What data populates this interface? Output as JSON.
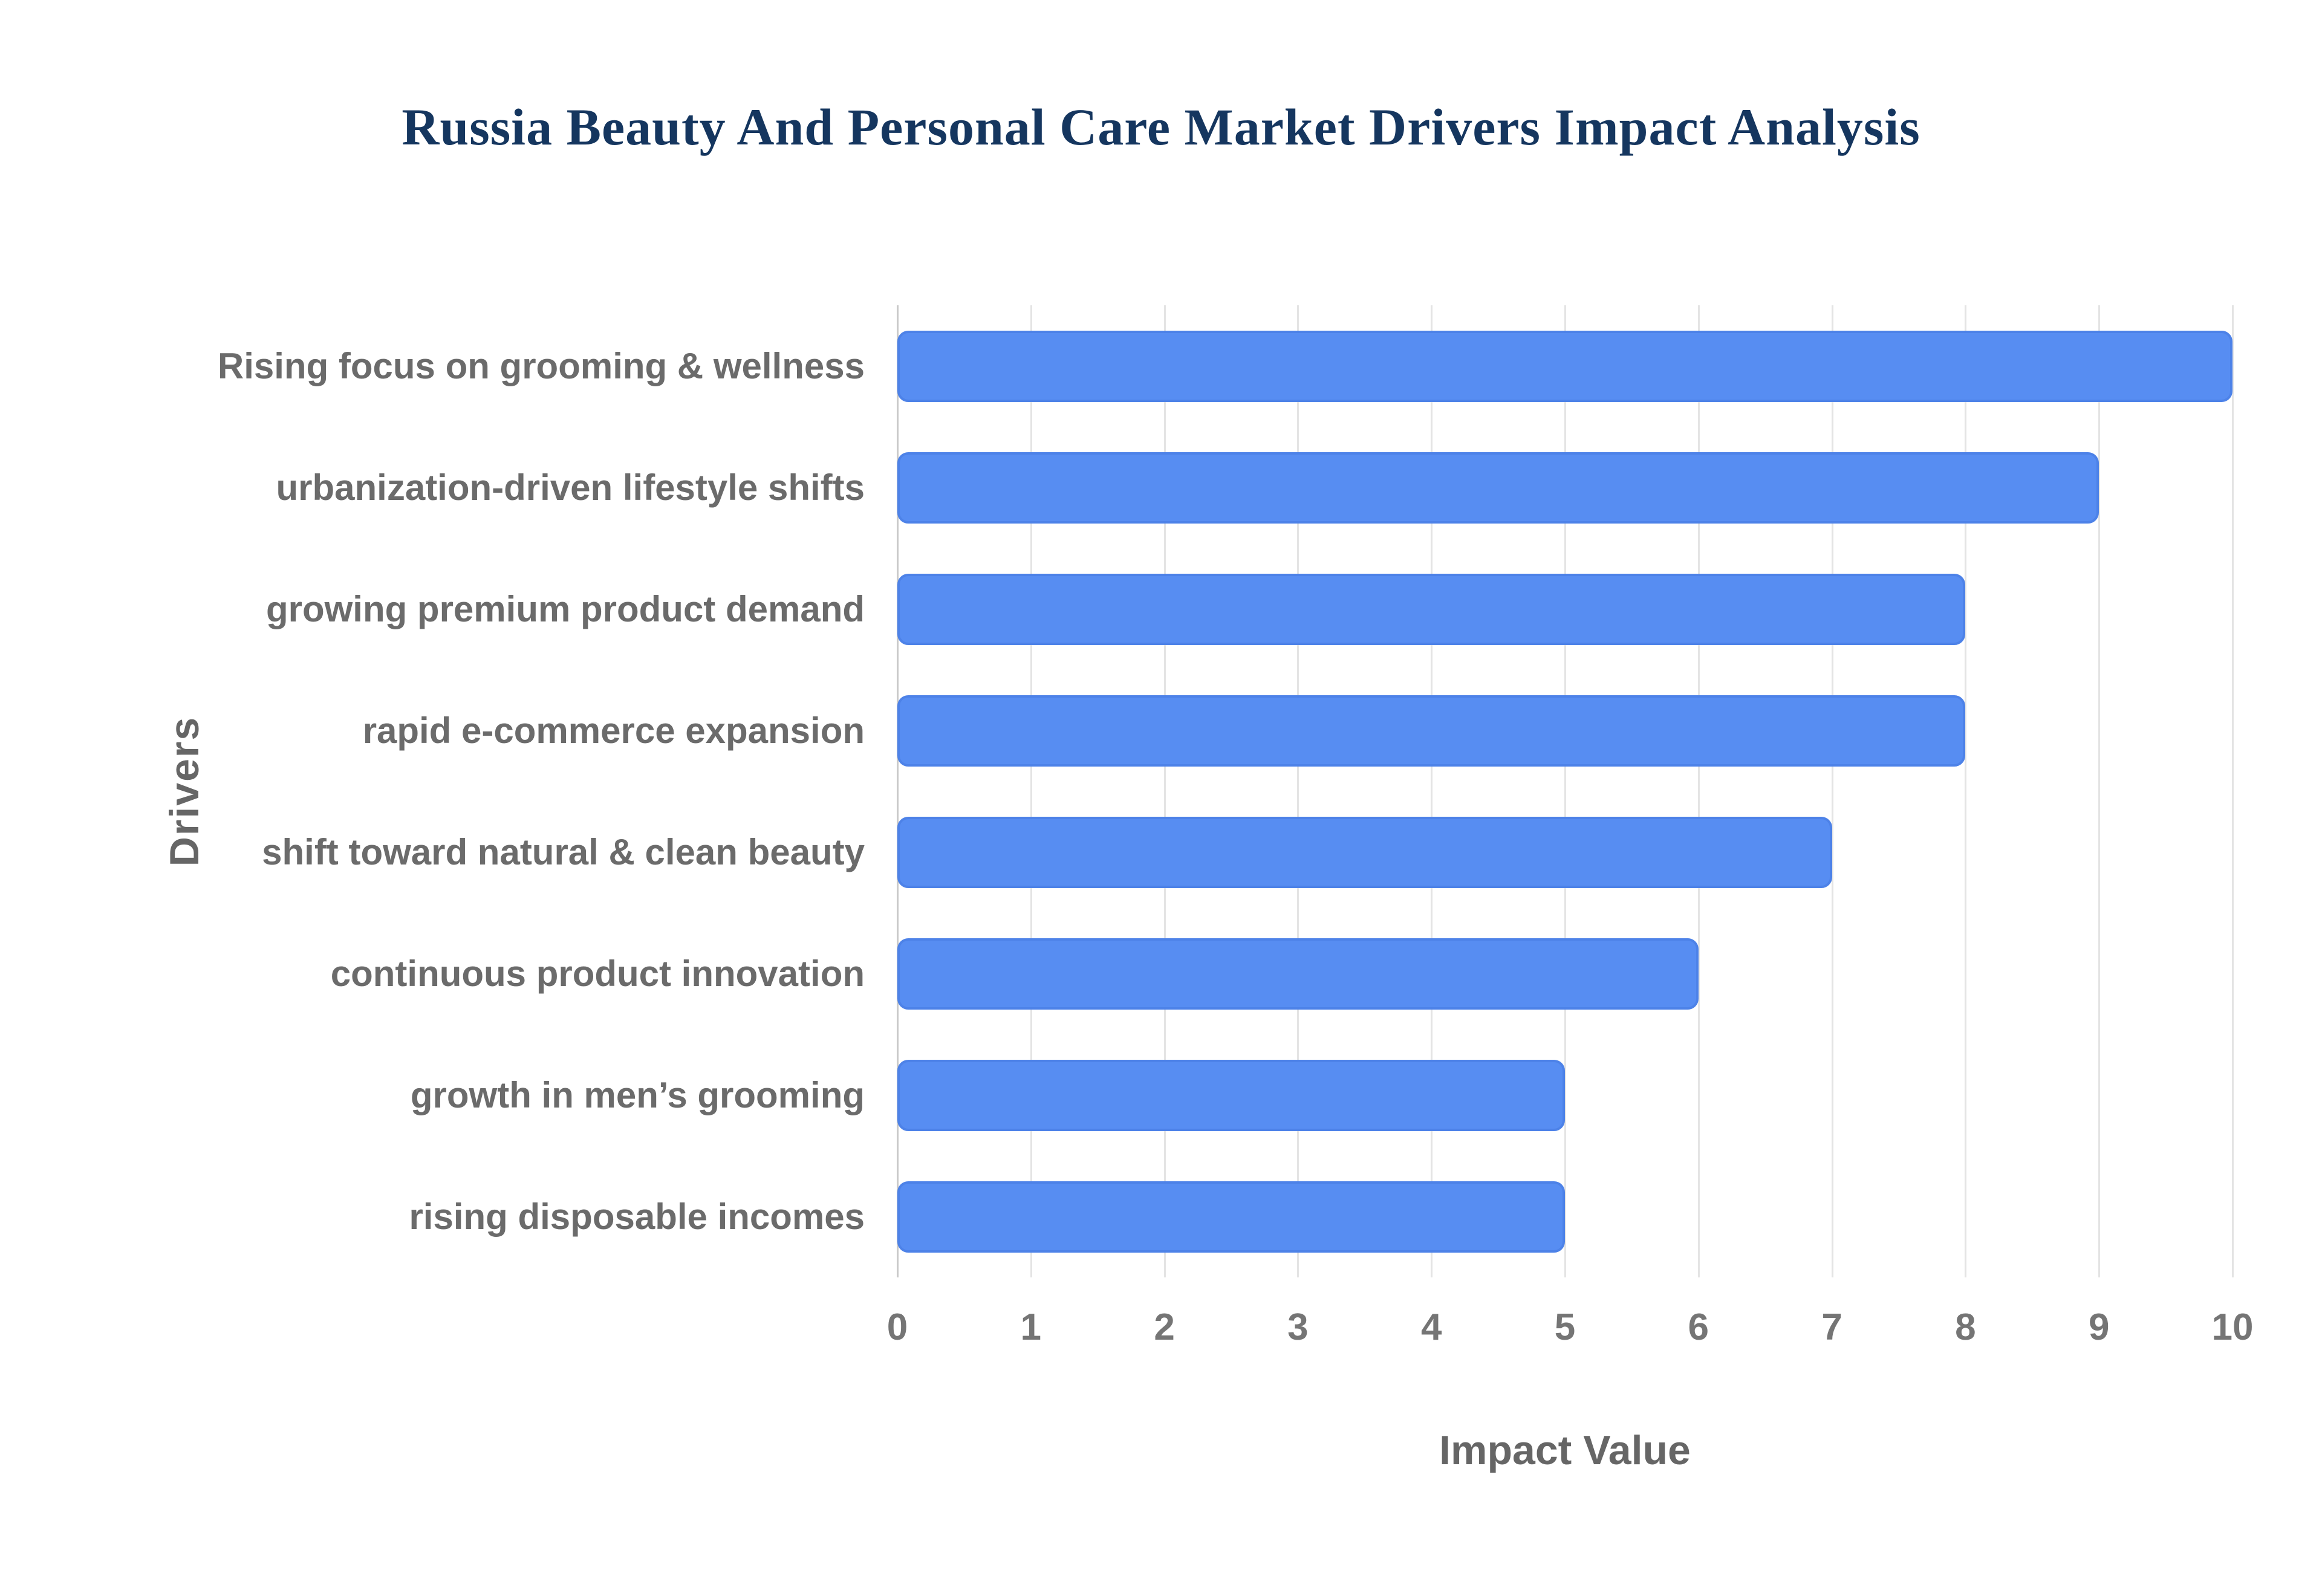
{
  "chart_data": {
    "type": "bar",
    "orientation": "horizontal",
    "title": "Russia Beauty And Personal Care Market Drivers Impact Analysis",
    "categories": [
      "Rising focus on grooming & wellness",
      "urbanization-driven lifestyle shifts",
      "growing premium product demand",
      "rapid e-commerce expansion",
      "shift toward natural & clean beauty",
      "continuous product innovation",
      "growth in men’s grooming",
      "rising disposable incomes"
    ],
    "values": [
      10,
      9,
      8,
      8,
      7,
      6,
      5,
      5
    ],
    "xlabel": "Impact Value",
    "ylabel": "Drivers",
    "xlim": [
      0,
      10
    ],
    "xticks": [
      0,
      1,
      2,
      3,
      4,
      5,
      6,
      7,
      8,
      9,
      10
    ],
    "grid": true,
    "legend": false,
    "colors": {
      "background": "#ffffff",
      "bar": "#578df2",
      "bar_border": "#4d82e8",
      "title": "#15365f",
      "axis_title": "#666666",
      "tick_label": "#757575",
      "category_label": "#6b6b6b",
      "gridline": "#e4e4e4",
      "axis_line": "#c9c9c9"
    }
  }
}
